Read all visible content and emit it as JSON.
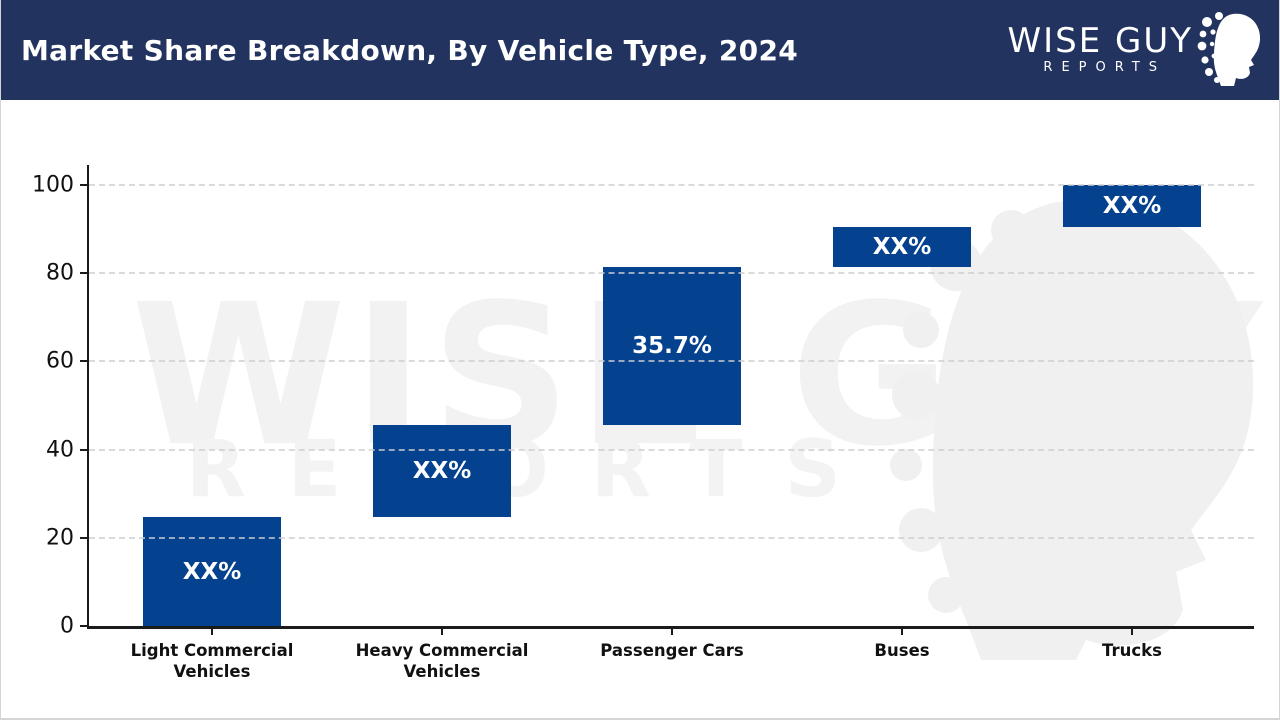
{
  "header": {
    "title": "Market Share Breakdown, By Vehicle Type, 2024",
    "bg_color": "#21335E",
    "logo": {
      "line1": "WISE GUY",
      "line2": "REPORTS"
    }
  },
  "watermark": {
    "line1": "WISE GUY",
    "line2": "REPORTS"
  },
  "chart_data": {
    "type": "bar",
    "subtype": "waterfall-floating-bars",
    "title": "Market Share Breakdown, By Vehicle Type, 2024",
    "categories": [
      "Light Commercial Vehicles",
      "Heavy Commercial Vehicles",
      "Passenger Cars",
      "Buses",
      "Trucks"
    ],
    "segments": [
      {
        "category": "Light Commercial Vehicles",
        "start": 0,
        "end": 24.7,
        "value": 24.7,
        "label": "XX%"
      },
      {
        "category": "Heavy Commercial Vehicles",
        "start": 24.7,
        "end": 45.6,
        "value": 20.9,
        "label": "XX%"
      },
      {
        "category": "Passenger Cars",
        "start": 45.6,
        "end": 81.3,
        "value": 35.7,
        "label": "35.7%"
      },
      {
        "category": "Buses",
        "start": 81.3,
        "end": 90.5,
        "value": 9.2,
        "label": "XX%"
      },
      {
        "category": "Trucks",
        "start": 90.5,
        "end": 100,
        "value": 9.5,
        "label": "XX%"
      }
    ],
    "bar_color": "#04418E",
    "label_color": "#FFFFFF",
    "yticks": [
      0,
      20,
      40,
      60,
      80,
      100
    ],
    "ylim": [
      0,
      100
    ],
    "xlabel": "",
    "ylabel": "",
    "grid": "horizontal-dashed",
    "grid_color": "#D9D9D9",
    "legend": "none"
  }
}
